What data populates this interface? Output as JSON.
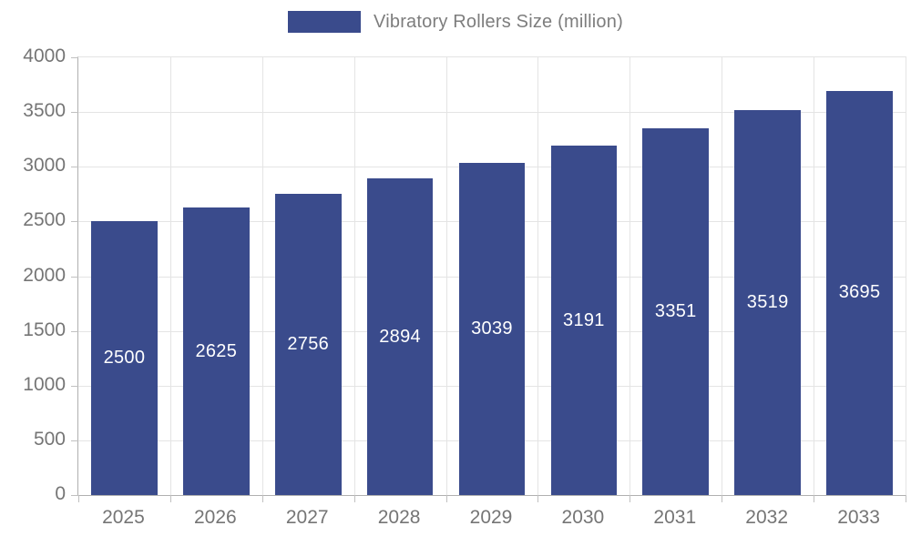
{
  "chart_data": {
    "type": "bar",
    "title": "",
    "legend": [
      "Vibratory Rollers Size (million)"
    ],
    "legend_position": "top-center",
    "categories": [
      "2025",
      "2026",
      "2027",
      "2028",
      "2029",
      "2030",
      "2031",
      "2032",
      "2033"
    ],
    "values": [
      2500,
      2625,
      2756,
      2894,
      3039,
      3191,
      3351,
      3519,
      3695
    ],
    "value_labels_shown": true,
    "value_label_position": "inside-center",
    "xlabel": "",
    "ylabel": "",
    "ylim": [
      0,
      4000
    ],
    "ytick_step": 500,
    "yticks": [
      "0",
      "500",
      "1000",
      "1500",
      "2000",
      "2500",
      "3000",
      "3500",
      "4000"
    ],
    "grid": true,
    "colors": {
      "bar": "#3a4b8c",
      "grid": "#e4e4e4",
      "axis": "#b0b0b0",
      "tick": "#c0c0c0",
      "tick_label": "#757575",
      "legend_text": "#7d7d7d",
      "value_label": "#ffffff",
      "background": "#ffffff"
    }
  }
}
